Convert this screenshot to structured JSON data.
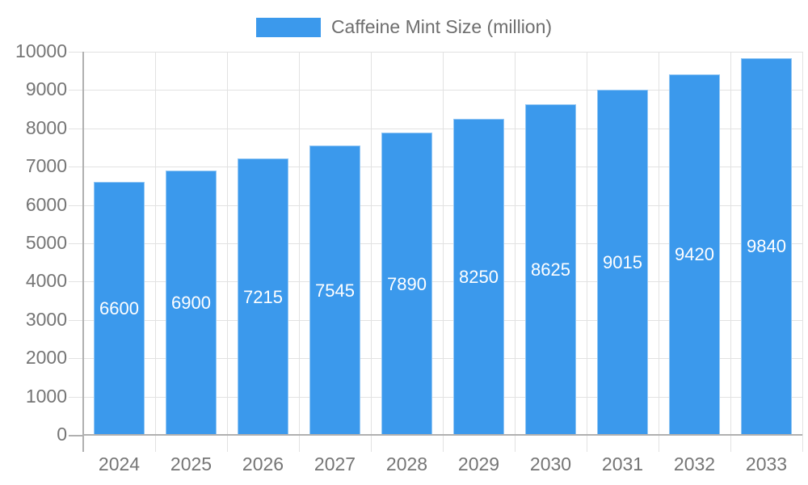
{
  "page": {
    "background": "#ffffff"
  },
  "legend": {
    "position": "top-center",
    "items": [
      {
        "label": "Caffeine Mint Size (million)",
        "color": "#3B99EC"
      }
    ]
  },
  "chart_data": {
    "type": "bar",
    "title": "Caffeine Mint Size (million)",
    "categories": [
      "2024",
      "2025",
      "2026",
      "2027",
      "2028",
      "2029",
      "2030",
      "2031",
      "2032",
      "2033"
    ],
    "series": [
      {
        "name": "Caffeine Mint Size (million)",
        "color": "#3B99EC",
        "values": [
          6600,
          6900,
          7215,
          7545,
          7890,
          8250,
          8625,
          9015,
          9420,
          9840
        ]
      }
    ],
    "xlabel": "",
    "ylabel": "",
    "ylim": [
      0,
      10000
    ],
    "ytick_step": 1000,
    "yticks": [
      0,
      1000,
      2000,
      3000,
      4000,
      5000,
      6000,
      7000,
      8000,
      9000,
      10000
    ],
    "grid": true,
    "grid_vertical": true,
    "legend_position": "top",
    "value_labels_position": "inside-center",
    "bar_width_fraction": 0.71
  },
  "colors": {
    "bar": "#3B99EC",
    "grid_line": "#e2e2e2",
    "axis_line": "#b0b0b0",
    "axis_text": "#757575",
    "legend_text": "#6e6e6e",
    "value_text": "#ffffff",
    "background": "#ffffff"
  }
}
